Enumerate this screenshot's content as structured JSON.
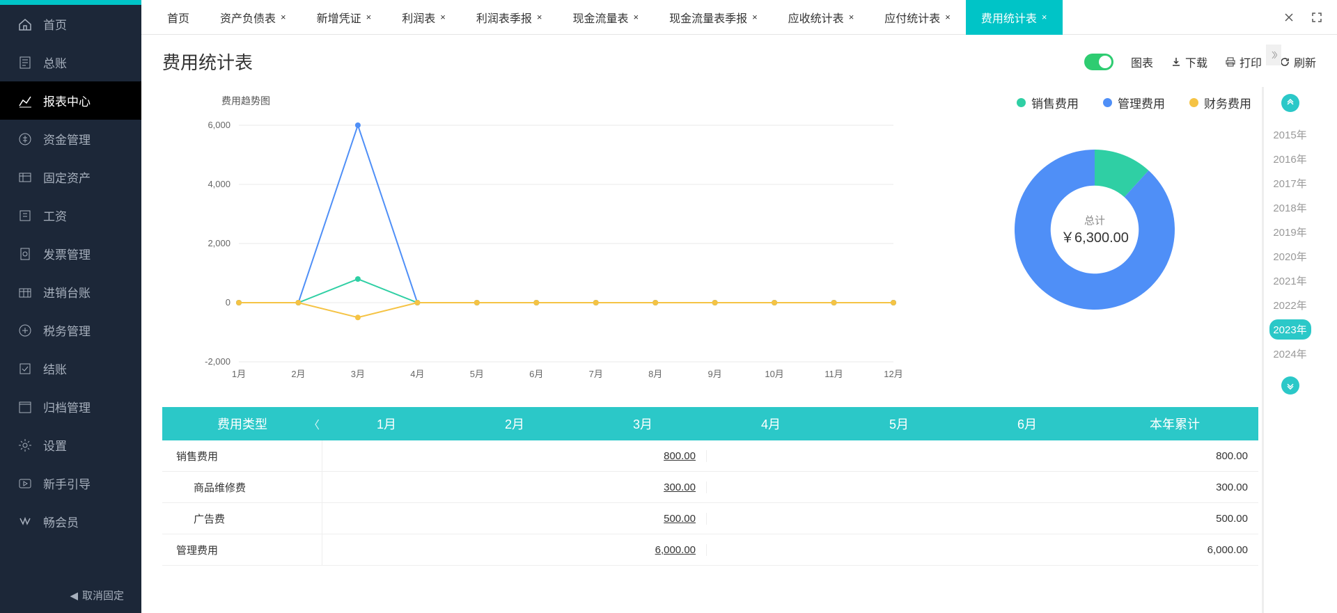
{
  "sidebar": {
    "items": [
      {
        "label": "首页",
        "icon": "home"
      },
      {
        "label": "总账",
        "icon": "ledger"
      },
      {
        "label": "报表中心",
        "icon": "chart",
        "active": true
      },
      {
        "label": "资金管理",
        "icon": "money"
      },
      {
        "label": "固定资产",
        "icon": "asset"
      },
      {
        "label": "工资",
        "icon": "salary"
      },
      {
        "label": "发票管理",
        "icon": "invoice"
      },
      {
        "label": "进销台账",
        "icon": "inventory"
      },
      {
        "label": "税务管理",
        "icon": "tax"
      },
      {
        "label": "结账",
        "icon": "close-book"
      },
      {
        "label": "归档管理",
        "icon": "archive"
      },
      {
        "label": "设置",
        "icon": "gear"
      },
      {
        "label": "新手引导",
        "icon": "guide"
      },
      {
        "label": "畅会员",
        "icon": "vip"
      }
    ],
    "footer": "取消固定"
  },
  "tabs": {
    "items": [
      {
        "label": "首页",
        "closable": false
      },
      {
        "label": "资产负债表",
        "closable": true
      },
      {
        "label": "新增凭证",
        "closable": true
      },
      {
        "label": "利润表",
        "closable": true
      },
      {
        "label": "利润表季报",
        "closable": true
      },
      {
        "label": "现金流量表",
        "closable": true
      },
      {
        "label": "现金流量表季报",
        "closable": true
      },
      {
        "label": "应收统计表",
        "closable": true
      },
      {
        "label": "应付统计表",
        "closable": true
      },
      {
        "label": "费用统计表",
        "closable": true,
        "active": true
      }
    ]
  },
  "page": {
    "title": "费用统计表",
    "actions": {
      "chart_label": "图表",
      "download": "下载",
      "print": "打印",
      "refresh": "刷新"
    }
  },
  "line_chart": {
    "title": "费用趋势图",
    "type": "line",
    "x_labels": [
      "1月",
      "2月",
      "3月",
      "4月",
      "5月",
      "6月",
      "7月",
      "8月",
      "9月",
      "10月",
      "11月",
      "12月"
    ],
    "y_ticks": [
      -2000,
      0,
      2000,
      4000,
      6000
    ],
    "ylim": [
      -2000,
      6000
    ],
    "grid_color": "#e8e8e8",
    "axis_color": "#888",
    "label_color": "#666",
    "label_fontsize": 13,
    "marker_radius": 4,
    "line_width": 2,
    "series": [
      {
        "name": "销售费用",
        "color": "#2fcfa4",
        "values": [
          0,
          0,
          800,
          0,
          0,
          0,
          0,
          0,
          0,
          0,
          0,
          0
        ]
      },
      {
        "name": "管理费用",
        "color": "#4f8ff7",
        "values": [
          0,
          0,
          6000,
          0,
          0,
          0,
          0,
          0,
          0,
          0,
          0,
          0
        ]
      },
      {
        "name": "财务费用",
        "color": "#f5c344",
        "values": [
          0,
          0,
          -500,
          0,
          0,
          0,
          0,
          0,
          0,
          0,
          0,
          0
        ]
      }
    ]
  },
  "legend": [
    {
      "label": "销售费用",
      "color": "#2fcfa4"
    },
    {
      "label": "管理费用",
      "color": "#4f8ff7"
    },
    {
      "label": "财务费用",
      "color": "#f5c344"
    }
  ],
  "donut": {
    "type": "donut",
    "center_label": "总计",
    "center_value": "￥6,300.00",
    "inner_ratio": 0.55,
    "slices": [
      {
        "label": "销售费用",
        "value": 800,
        "color": "#2fcfa4"
      },
      {
        "label": "管理费用",
        "value": 6000,
        "color": "#4f8ff7"
      }
    ],
    "center_label_color": "#888",
    "center_value_color": "#333",
    "center_label_fontsize": 15,
    "center_value_fontsize": 20
  },
  "table": {
    "header_bg": "#2bc8c8",
    "header_color": "#ffffff",
    "type_col": "费用类型",
    "months": [
      "1月",
      "2月",
      "3月",
      "4月",
      "5月",
      "6月"
    ],
    "total_col": "本年累计",
    "rows": [
      {
        "label": "销售费用",
        "indent": 0,
        "m": [
          "",
          "",
          "800.00",
          "",
          "",
          ""
        ],
        "total": "800.00"
      },
      {
        "label": "商品维修费",
        "indent": 1,
        "m": [
          "",
          "",
          "300.00",
          "",
          "",
          ""
        ],
        "total": "300.00"
      },
      {
        "label": "广告费",
        "indent": 1,
        "m": [
          "",
          "",
          "500.00",
          "",
          "",
          ""
        ],
        "total": "500.00"
      },
      {
        "label": "管理费用",
        "indent": 0,
        "m": [
          "",
          "",
          "6,000.00",
          "",
          "",
          ""
        ],
        "total": "6,000.00"
      }
    ]
  },
  "years": {
    "list": [
      "2015年",
      "2016年",
      "2017年",
      "2018年",
      "2019年",
      "2020年",
      "2021年",
      "2022年",
      "2023年",
      "2024年"
    ],
    "active": "2023年"
  }
}
